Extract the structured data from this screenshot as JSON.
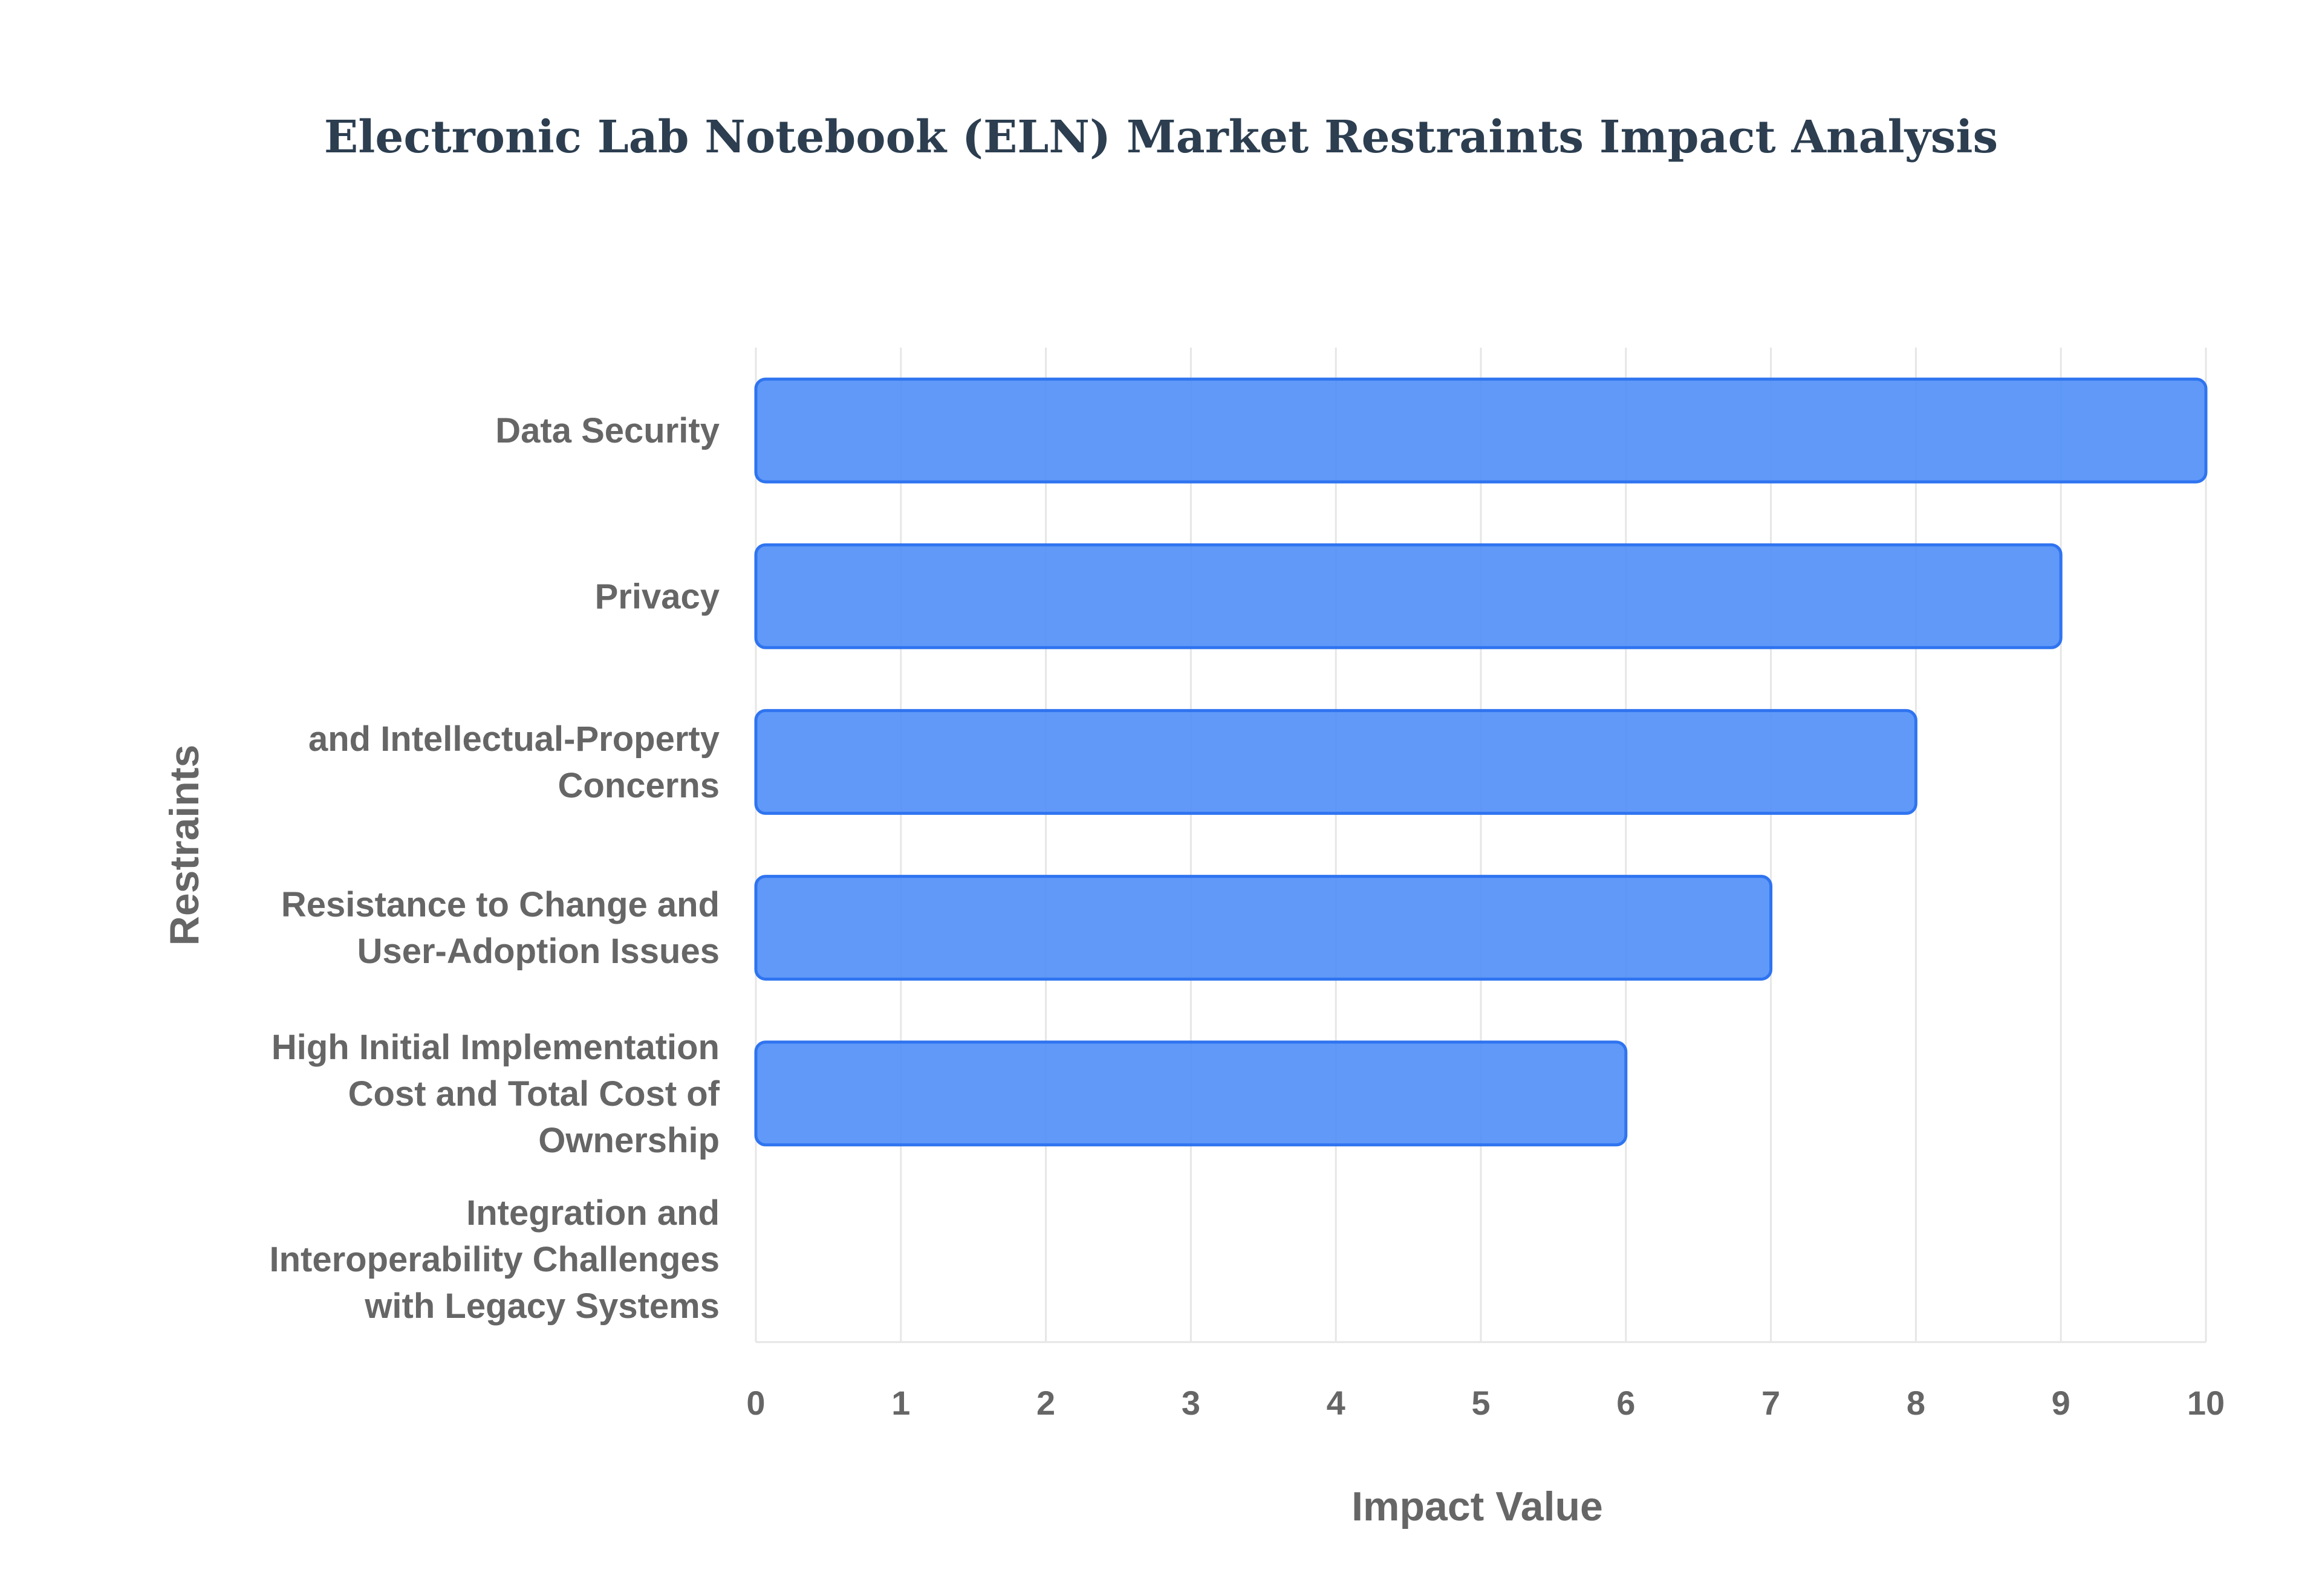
{
  "chart_data": {
    "type": "bar",
    "orientation": "horizontal",
    "title": "Electronic Lab Notebook (ELN) Market Restraints Impact Analysis",
    "xlabel": "Impact Value",
    "ylabel": "Restraints",
    "categories": [
      [
        "Data Security"
      ],
      [
        "Privacy"
      ],
      [
        "and Intellectual-Property",
        "Concerns"
      ],
      [
        "Resistance to Change and",
        "User-Adoption Issues"
      ],
      [
        "High Initial Implementation",
        "Cost and Total Cost of",
        "Ownership"
      ],
      [
        "Integration and",
        "Interoperability Challenges",
        "with Legacy Systems"
      ]
    ],
    "values": [
      10,
      9,
      8,
      7,
      6,
      null
    ],
    "xlim": [
      0,
      10
    ],
    "xticks": [
      "0",
      "1",
      "2",
      "3",
      "4",
      "5",
      "6",
      "7",
      "8",
      "9",
      "10"
    ],
    "grid": true,
    "legend": "none",
    "colors": {
      "bar_fill": "#4f8ef7",
      "bar_stroke": "#2f74f0",
      "title": "#2c3e50",
      "text": "#666666",
      "grid": "#e6e6e6"
    }
  }
}
